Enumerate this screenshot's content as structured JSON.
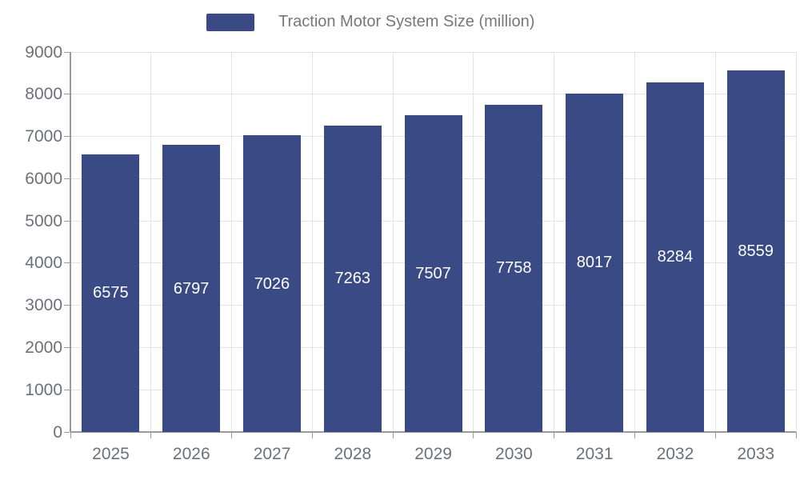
{
  "chart_data": {
    "type": "bar",
    "title": "",
    "legend_label": "Traction Motor System Size (million)",
    "categories": [
      "2025",
      "2026",
      "2027",
      "2028",
      "2029",
      "2030",
      "2031",
      "2032",
      "2033"
    ],
    "values": [
      6575,
      6797,
      7026,
      7263,
      7507,
      7758,
      8017,
      8284,
      8559
    ],
    "xlabel": "",
    "ylabel": "",
    "ylim": [
      0,
      9000
    ],
    "ytick_step": 1000,
    "yticks": [
      0,
      1000,
      2000,
      3000,
      4000,
      5000,
      6000,
      7000,
      8000,
      9000
    ],
    "grid": true,
    "legend_position": "top"
  },
  "colors": {
    "bar": "#394a84",
    "grid": "#e3e3e3",
    "axis": "#9a9a9a",
    "axis_label": "#6e7079",
    "legend_text": "#76777b",
    "bar_value_text": "#ffffff",
    "background": "#ffffff"
  }
}
